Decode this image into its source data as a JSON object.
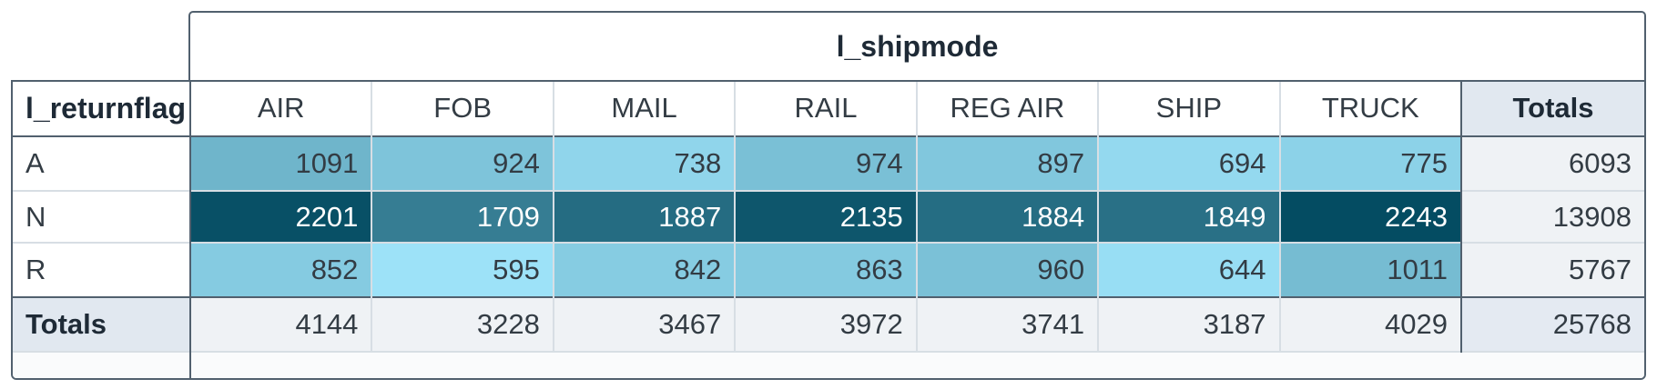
{
  "chart_data": {
    "type": "heatmap",
    "column_dimension": "l_shipmode",
    "row_dimension": "l_returnflag",
    "totals_label": "Totals",
    "columns": [
      "AIR",
      "FOB",
      "MAIL",
      "RAIL",
      "REG AIR",
      "SHIP",
      "TRUCK"
    ],
    "rows": [
      {
        "label": "A",
        "values": [
          1091,
          924,
          738,
          974,
          897,
          694,
          775
        ],
        "total": 6093
      },
      {
        "label": "N",
        "values": [
          2201,
          1709,
          1887,
          2135,
          1884,
          1849,
          2243
        ],
        "total": 13908
      },
      {
        "label": "R",
        "values": [
          852,
          595,
          842,
          863,
          960,
          644,
          1011
        ],
        "total": 5767
      }
    ],
    "column_totals": [
      4144,
      3228,
      3467,
      3972,
      3741,
      3187,
      4029
    ],
    "grand_total": 25768,
    "color_scale": {
      "min_value": 595,
      "max_value": 2243,
      "min_color": "#9DE2F8",
      "max_color": "#044C62",
      "light_text_threshold": 0.55
    },
    "legend_position": "none",
    "grid": true
  },
  "colors": {
    "page_bg": "#FFFFFF",
    "border_dark": "#51606E",
    "border_light": "#D7DEE4",
    "header_text": "#1E2A36",
    "value_text": "#333C44",
    "value_text_inverse": "#FFFFFF",
    "totals_header_bg": "#E1E8F0",
    "totals_cell_bg": "#EFF2F5",
    "grand_total_bg": "#E4EAF2",
    "row_header_bg": "#FFFFFF",
    "footer_bg": "#FAFBFC"
  }
}
